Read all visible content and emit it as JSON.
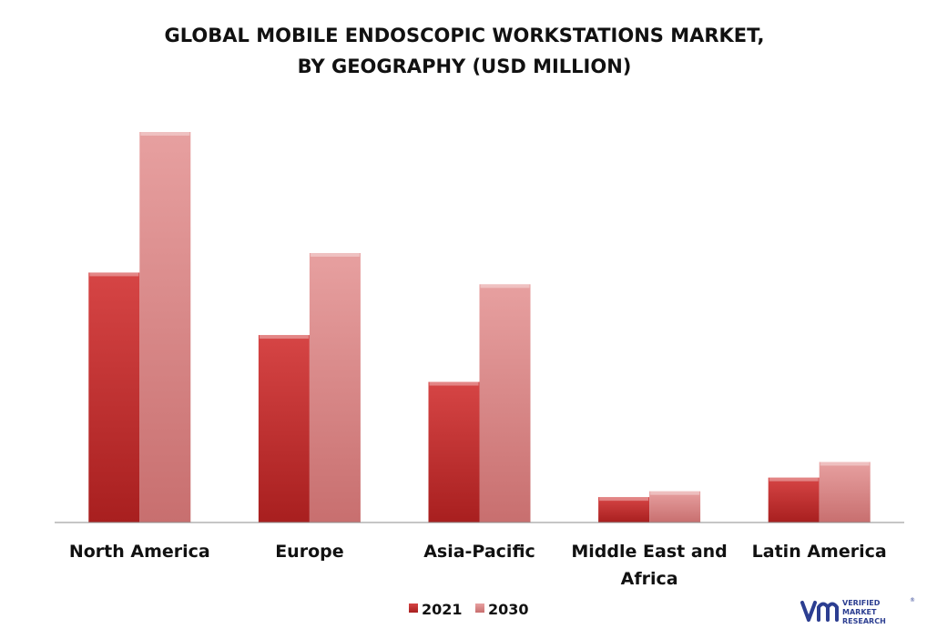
{
  "chart_data": {
    "type": "bar",
    "title_line1": "GLOBAL MOBILE ENDOSCOPIC WORKSTATIONS MARKET,",
    "title_line2": "BY GEOGRAPHY (USD MILLION)",
    "xlabel": "",
    "ylabel": "",
    "categories": [
      "North America",
      "Europe",
      "Asia-Pacific",
      "Middle East and Africa",
      "Latin America"
    ],
    "series": [
      {
        "name": "2021",
        "values": [
          64,
          48,
          36,
          6.5,
          11.5
        ]
      },
      {
        "name": "2030",
        "values": [
          100,
          69,
          61,
          8,
          15.5
        ]
      }
    ],
    "ylim": [
      0,
      105
    ],
    "grid": false,
    "legend_position": "bottom-center",
    "colors": {
      "2021_top": "#d64545",
      "2021_bottom": "#a81f1f",
      "2030_top": "#e7a0a0",
      "2030_bottom": "#c86f6f",
      "axis": "#8c8c8c"
    }
  },
  "brand": {
    "name_line1": "VERIFIED",
    "name_line2": "MARKET",
    "name_line3": "RESEARCH",
    "mark": "vm",
    "registered": "®",
    "color": "#2c3e91"
  }
}
